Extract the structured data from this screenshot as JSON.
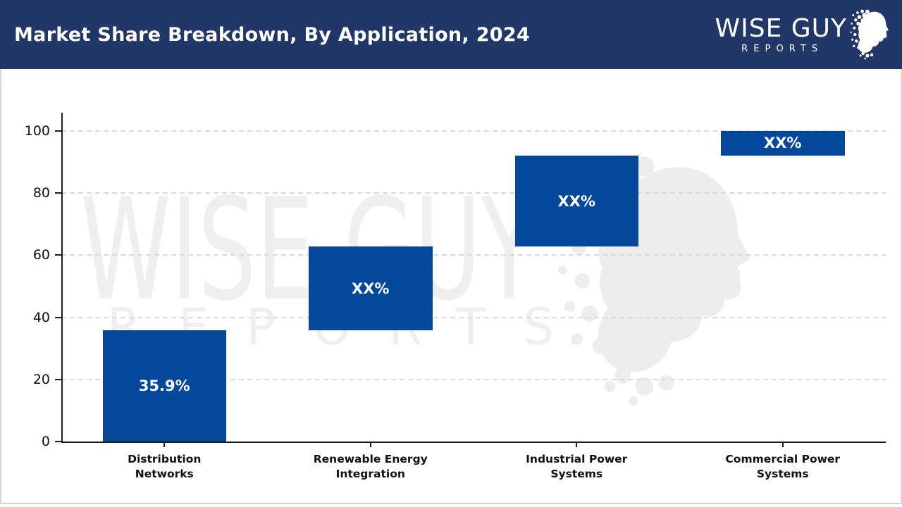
{
  "header": {
    "title": "Market Share Breakdown, By Application, 2024",
    "logo": {
      "line1": "WISE GUY",
      "line2": "REPORTS"
    }
  },
  "watermark": {
    "line1": "WISE GUY",
    "line2": "REPORTS"
  },
  "colors": {
    "header_bg": "#213767",
    "bar": "#04489c",
    "bar_label": "#ffffff",
    "grid": "#dadada",
    "axis": "#1c1c1c",
    "watermark": "#efefef",
    "panel_border": "#d6d6d6"
  },
  "chart_data": {
    "type": "bar",
    "variant": "floating-waterfall",
    "title": "Market Share Breakdown, By Application, 2024",
    "categories": [
      "Distribution Networks",
      "Renewable Energy Integration",
      "Industrial Power Systems",
      "Commercial Power Systems"
    ],
    "category_lines": [
      [
        "Distribution",
        "Networks"
      ],
      [
        "Renewable Energy",
        "Integration"
      ],
      [
        "Industrial Power",
        "Systems"
      ],
      [
        "Commercial Power",
        "Systems"
      ]
    ],
    "bars": [
      {
        "start": 0,
        "end": 35.9,
        "label": "35.9%"
      },
      {
        "start": 35.9,
        "end": 62.7,
        "label": "XX%"
      },
      {
        "start": 62.7,
        "end": 92.1,
        "label": "XX%"
      },
      {
        "start": 92.1,
        "end": 100,
        "label": "XX%"
      }
    ],
    "yticks": [
      0,
      20,
      40,
      60,
      80,
      100
    ],
    "ylim": [
      0,
      105.9
    ],
    "grid": "horizontal-dashed",
    "legend": "none"
  }
}
